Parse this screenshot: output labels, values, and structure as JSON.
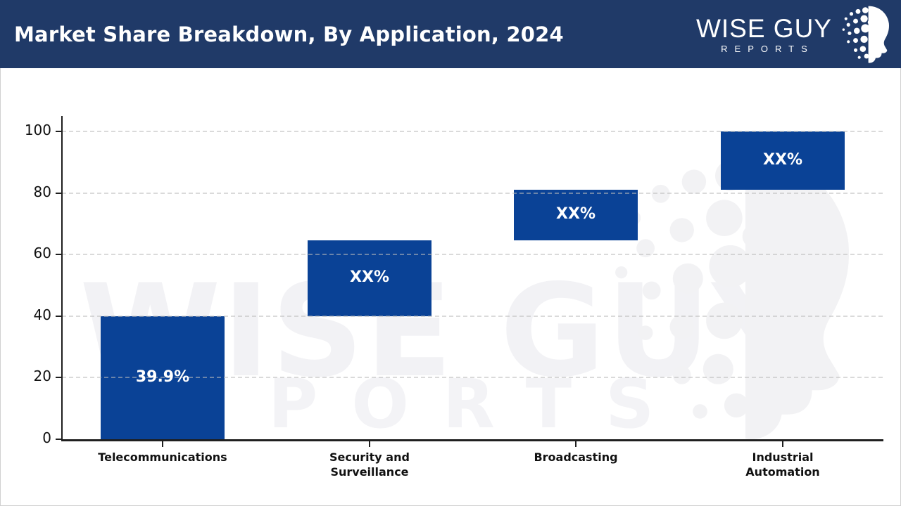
{
  "header": {
    "title": "Market Share Breakdown, By Application, 2024",
    "logo": {
      "line1": "WISE GUY",
      "line2": "REPORTS"
    }
  },
  "watermark": {
    "line1": "WISE GUY",
    "line2": "PORTS"
  },
  "colors": {
    "header_bg": "#203a68",
    "bar": "#0a4296",
    "grid": "#bcbcbc",
    "axis": "#1f1f1f",
    "tick_label": "#111111",
    "bar_label": "#ffffff",
    "category_label": "#111111"
  },
  "chart_data": {
    "type": "bar",
    "subtype": "waterfall-stacked-breakdown",
    "title": "Market Share Breakdown, By Application, 2024",
    "categories": [
      "Telecommunications",
      "Security and\nSurveillance",
      "Broadcasting",
      "Industrial\nAutomation"
    ],
    "segments": [
      {
        "category": "Telecommunications",
        "start": 0,
        "end": 39.9,
        "label": "39.9%"
      },
      {
        "category": "Security and Surveillance",
        "start": 40,
        "end": 64.5,
        "label": "XX%"
      },
      {
        "category": "Broadcasting",
        "start": 64.5,
        "end": 81,
        "label": "XX%"
      },
      {
        "category": "Industrial Automation",
        "start": 81,
        "end": 100,
        "label": "XX%"
      }
    ],
    "ylim": [
      0,
      105
    ],
    "yticks": [
      0,
      20,
      40,
      60,
      80,
      100
    ],
    "xlabel": "",
    "ylabel": "",
    "grid": "dashed-horizontal",
    "legend": "none"
  }
}
